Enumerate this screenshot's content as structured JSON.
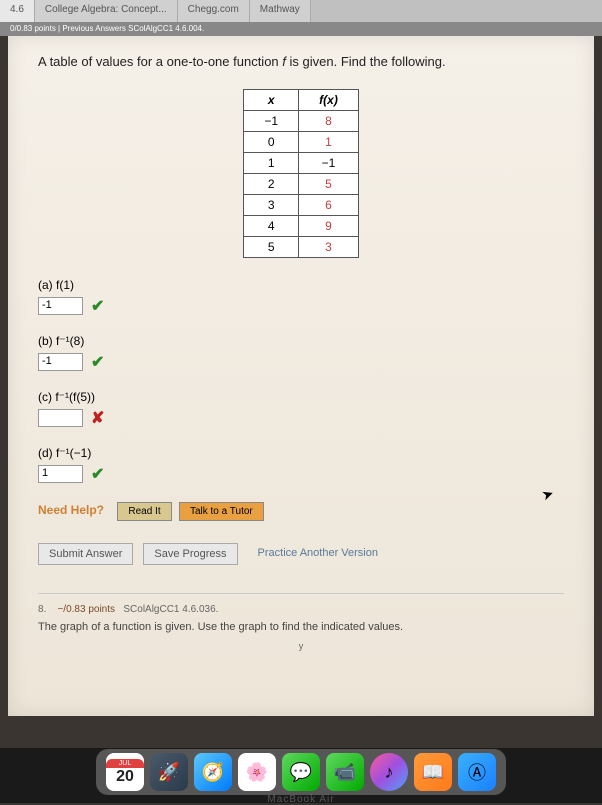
{
  "tabs": {
    "t0": "4.6",
    "t1": "College Algebra: Concept...",
    "t2": "Chegg.com",
    "t3": "Mathway"
  },
  "subheader": "0/0.83 points | Previous Answers SColAlgCC1 4.6.004.",
  "question": "A table of values for a one-to-one function f is given. Find the following.",
  "table": {
    "hx": "x",
    "hf": "f(x)",
    "rows": [
      {
        "x": "−1",
        "f": "8"
      },
      {
        "x": "0",
        "f": "1"
      },
      {
        "x": "1",
        "f": "−1"
      },
      {
        "x": "2",
        "f": "5"
      },
      {
        "x": "3",
        "f": "6"
      },
      {
        "x": "4",
        "f": "9"
      },
      {
        "x": "5",
        "f": "3"
      }
    ]
  },
  "parts": {
    "a": {
      "label": "(a)    f(1)",
      "ans": "-1",
      "mark": "check"
    },
    "b": {
      "label": "(b)    f⁻¹(8)",
      "ans": "-1",
      "mark": "check"
    },
    "c": {
      "label": "(c)    f⁻¹(f(5))",
      "ans": "",
      "mark": "cross"
    },
    "d": {
      "label": "(d)    f⁻¹(−1)",
      "ans": "1",
      "mark": "check"
    }
  },
  "help": {
    "label": "Need Help?",
    "read": "Read It",
    "tutor": "Talk to a Tutor"
  },
  "actions": {
    "submit": "Submit Answer",
    "save": "Save Progress",
    "practice": "Practice Another Version"
  },
  "nextq": {
    "num": "8.",
    "points": "−/0.83 points",
    "ref": "SColAlgCC1 4.6.036.",
    "text": "The graph of a function is given. Use the graph to find the indicated values.",
    "axis": "y"
  },
  "dock": {
    "cal_month": "JUL",
    "cal_day": "20"
  },
  "macbook": "MacBook Air"
}
